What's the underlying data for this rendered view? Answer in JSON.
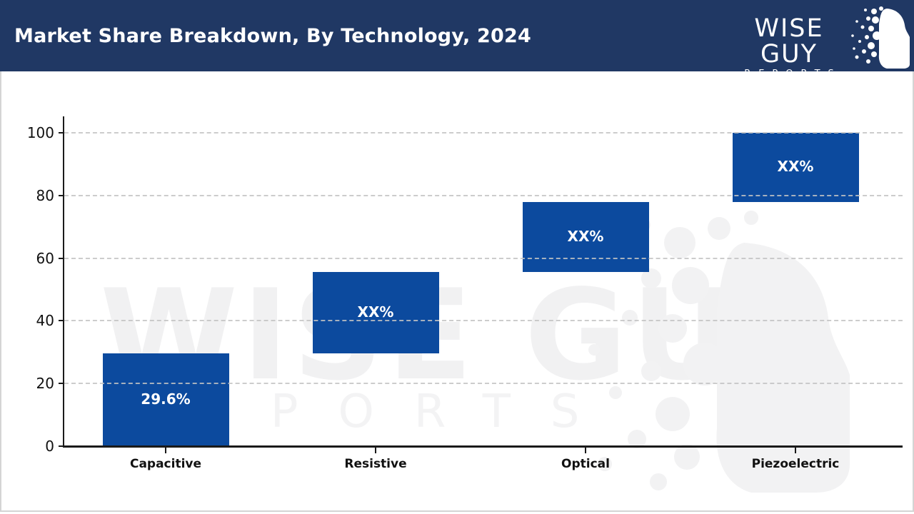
{
  "header": {
    "title": "Market Share Breakdown, By Technology, 2024",
    "logo": {
      "line1": "WISE GUY",
      "line2": "REPORTS"
    }
  },
  "watermark": {
    "line1": "WISE GU",
    "line2": "REPORTS"
  },
  "chart_data": {
    "type": "bar",
    "subtype": "waterfall",
    "title": "Market Share Breakdown, By Technology, 2024",
    "xlabel": "",
    "ylabel": "",
    "categories": [
      "Capacitive",
      "Resistive",
      "Optical",
      "Piezoelectric"
    ],
    "segments": [
      {
        "category": "Capacitive",
        "start": 0,
        "end": 29.6,
        "label": "29.6%"
      },
      {
        "category": "Resistive",
        "start": 29.6,
        "end": 55.5,
        "label": "XX%"
      },
      {
        "category": "Optical",
        "start": 55.5,
        "end": 78.0,
        "label": "XX%"
      },
      {
        "category": "Piezoelectric",
        "start": 78.0,
        "end": 100.0,
        "label": "XX%"
      }
    ],
    "yticks": [
      0,
      20,
      40,
      60,
      80,
      100
    ],
    "ylim": [
      0,
      105
    ],
    "grid": "horizontal-dashed",
    "legend": "none"
  },
  "colors": {
    "header_navy": "#203864",
    "bar_blue": "#0c4a9e",
    "grid_gray": "#c3c3c3",
    "axis_black": "#1a1a1a",
    "watermark_gray": "#f1f1f2"
  }
}
